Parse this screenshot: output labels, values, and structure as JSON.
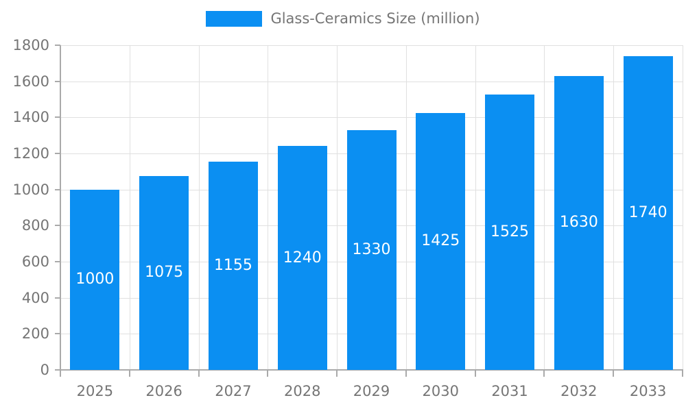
{
  "legend": {
    "label": "Glass-Ceramics Size (million)",
    "position": "top-center"
  },
  "chart_data": {
    "type": "bar",
    "title": "",
    "categories": [
      "2025",
      "2026",
      "2027",
      "2028",
      "2029",
      "2030",
      "2031",
      "2032",
      "2033"
    ],
    "series": [
      {
        "name": "Glass-Ceramics Size (million)",
        "values": [
          1000,
          1075,
          1155,
          1240,
          1330,
          1425,
          1525,
          1630,
          1740
        ]
      }
    ],
    "value_labels": [
      "1000",
      "1075",
      "1155",
      "1240",
      "1330",
      "1425",
      "1525",
      "1630",
      "1740"
    ],
    "xlabel": "",
    "ylabel": "",
    "ylim": [
      0,
      1800
    ],
    "ytick_step": 200,
    "ytick_labels": [
      "0",
      "200",
      "400",
      "600",
      "800",
      "1000",
      "1200",
      "1400",
      "1600",
      "1800"
    ],
    "grid": "horizontal and vertical gridlines, ticks outside axes",
    "legend_position": "top",
    "colors": {
      "bar": "#0b8ff2",
      "grid": "#e0e0e0",
      "axis": "#aaaaaa",
      "axis_label": "#757575",
      "value_label": "#ffffff",
      "background": "#ffffff"
    }
  }
}
